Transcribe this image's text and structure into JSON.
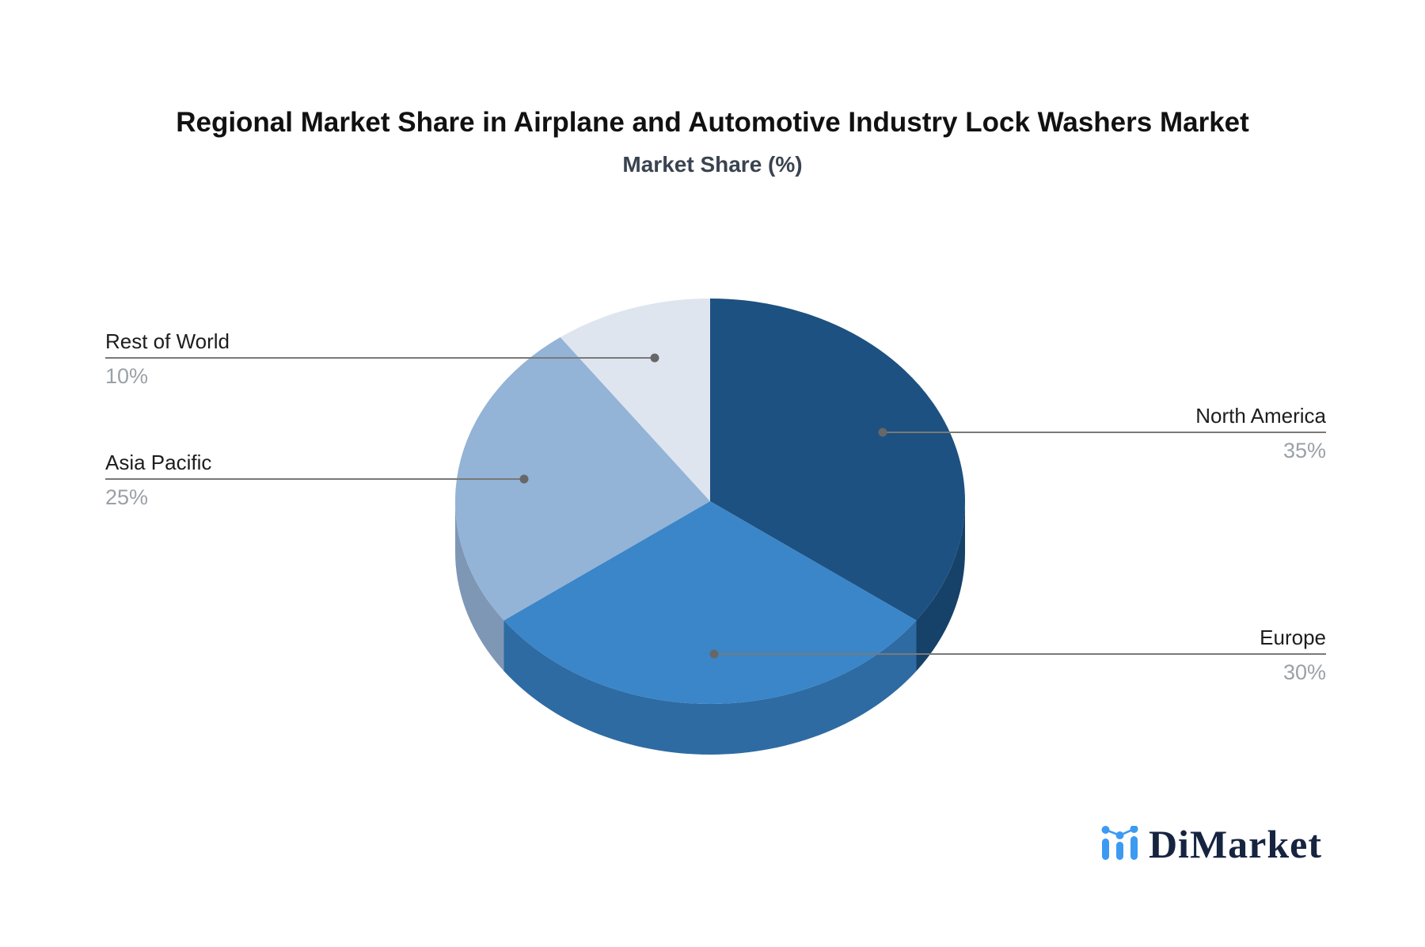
{
  "title": "Regional Market Share in Airplane and Automotive Industry Lock Washers Market",
  "subtitle": "Market Share (%)",
  "chart_data": {
    "type": "pie",
    "style": "pie-3d",
    "title": "Regional Market Share in Airplane and Automotive Industry Lock Washers Market",
    "subtitle": "Market Share (%)",
    "unit": "%",
    "direction": "clockwise",
    "start_angle": "12-oclock",
    "legend_position": "callout-labels",
    "slices": [
      {
        "label": "North America",
        "value": 35,
        "display": "35%",
        "color": "#1d5181",
        "side_color": "#164169",
        "callout_side": "right"
      },
      {
        "label": "Europe",
        "value": 30,
        "display": "30%",
        "color": "#3a86c8",
        "side_color": "#2e6ba3",
        "callout_side": "right"
      },
      {
        "label": "Asia Pacific",
        "value": 25,
        "display": "25%",
        "color": "#93b3d7",
        "side_color": "#7e97b5",
        "callout_side": "left"
      },
      {
        "label": "Rest of World",
        "value": 10,
        "display": "10%",
        "color": "#dee5ef",
        "side_color": "#b6c2d4",
        "callout_side": "left"
      }
    ]
  },
  "branding": {
    "logo_text": "DiMarket",
    "logo_icon": "bar-line-chart-icon",
    "logo_text_color": "#162440",
    "logo_icon_color": "#3d9af2"
  },
  "colors": {
    "background": "#ffffff",
    "title_text": "#111111",
    "subtitle_text": "#3a4350",
    "label_text": "#1d1d1d",
    "percent_text": "#9aa1a8",
    "leader_line": "#797979",
    "leader_dot": "#676767"
  }
}
